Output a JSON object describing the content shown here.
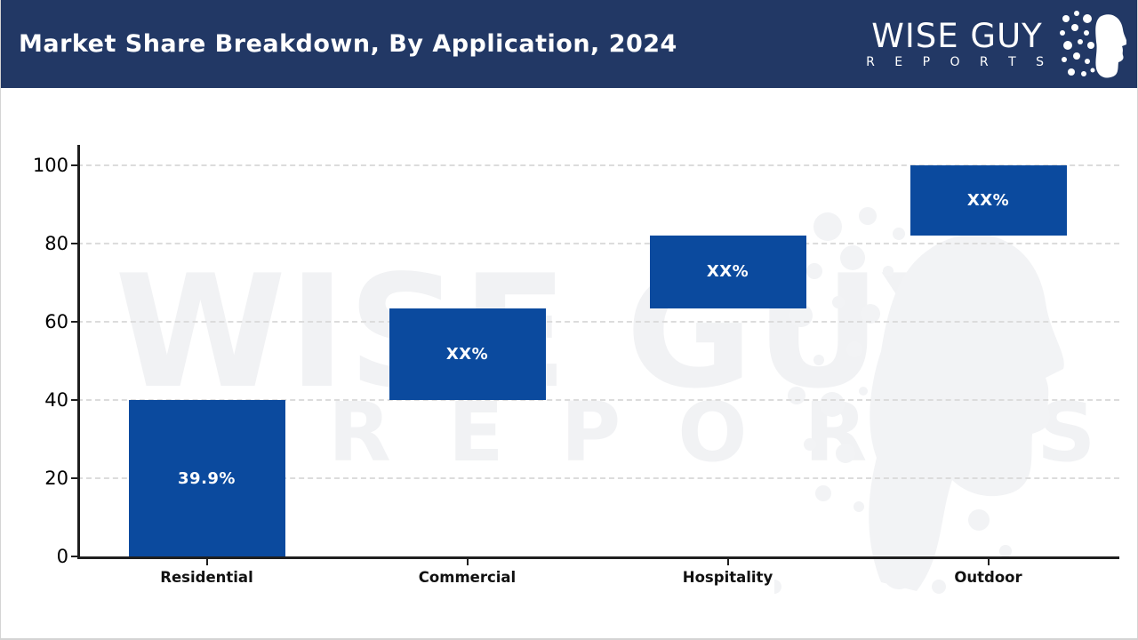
{
  "header": {
    "title": "Market Share Breakdown, By Application, 2024",
    "bg_color": "#223865",
    "logo": {
      "line1": "WISE GUY",
      "line2": "R E P O R T S"
    }
  },
  "watermark": {
    "line1": "WISE GUY",
    "line2": "R E P O R T S",
    "color": "#f1f2f4"
  },
  "chart_data": {
    "type": "bar",
    "subtype": "waterfall",
    "title": "Market Share Breakdown, By Application, 2024",
    "categories": [
      "Residential",
      "Commercial",
      "Hospitality",
      "Outdoor"
    ],
    "segments": [
      {
        "category": "Residential",
        "start": 0,
        "end": 39.9,
        "label": "39.9%"
      },
      {
        "category": "Commercial",
        "start": 39.9,
        "end": 63.5,
        "label": "XX%"
      },
      {
        "category": "Hospitality",
        "start": 63.5,
        "end": 82.0,
        "label": "XX%"
      },
      {
        "category": "Outdoor",
        "start": 82.0,
        "end": 100,
        "label": "XX%"
      }
    ],
    "yticks": [
      0,
      20,
      40,
      60,
      80,
      100
    ],
    "ylim": [
      0,
      105
    ],
    "xlabel": "",
    "ylabel": "",
    "grid": "horizontal-dashed",
    "legend": "none",
    "bar_color": "#0b4a9e",
    "bar_label_color": "#ffffff",
    "axis_color": "#1f1f1f",
    "grid_color": "#dcdcdc"
  }
}
